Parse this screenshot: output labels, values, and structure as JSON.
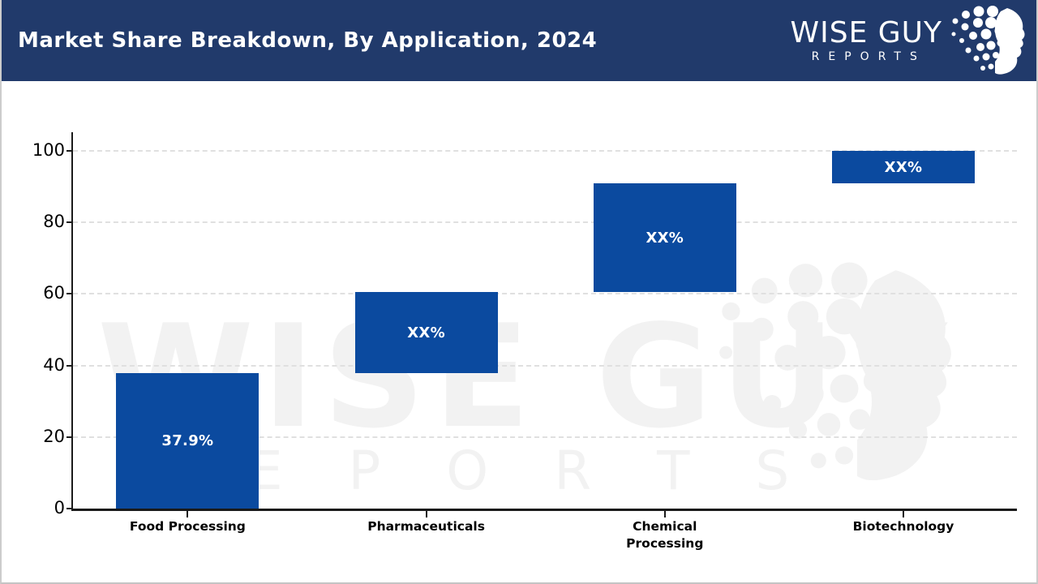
{
  "header": {
    "title": "Market Share Breakdown, By Application, 2024",
    "logo": {
      "line1": "WISE GUY",
      "line2": "REPORTS",
      "head_icon": "dotted-face-profile"
    }
  },
  "watermark": {
    "line1": "WISE GUY",
    "line2": "R E P O R T S",
    "head_icon": "dotted-face-profile"
  },
  "colors": {
    "header_background": "#213a6b",
    "bar_fill": "#0b4a9f",
    "bar_label_text": "#ffffff",
    "title_text": "#ffffff",
    "axis_text": "#000000",
    "gridline": "#e0e0e0",
    "spine": "#1a1a1a",
    "watermark": "#f2f2f2",
    "chart_background": "#ffffff"
  },
  "chart_data": {
    "type": "bar",
    "subtype": "waterfall-floating-bars",
    "title": "Market Share Breakdown, By Application, 2024",
    "xlabel": "",
    "ylabel": "",
    "ylim": [
      0,
      100
    ],
    "yticks": [
      0,
      20,
      40,
      60,
      80,
      100
    ],
    "grid": "horizontal-dashed",
    "legend": "none",
    "categories": [
      "Food Processing",
      "Pharmaceuticals",
      "Chemical\nProcessing",
      "Biotechnology"
    ],
    "segments": [
      {
        "category": "Food Processing",
        "start": 0,
        "end": 37.9,
        "label": "37.9%"
      },
      {
        "category": "Pharmaceuticals",
        "start": 37.9,
        "end": 60.5,
        "label": "XX%"
      },
      {
        "category": "Chemical Processing",
        "start": 60.5,
        "end": 90.9,
        "label": "XX%"
      },
      {
        "category": "Biotechnology",
        "start": 90.9,
        "end": 100.0,
        "label": "XX%"
      }
    ]
  }
}
